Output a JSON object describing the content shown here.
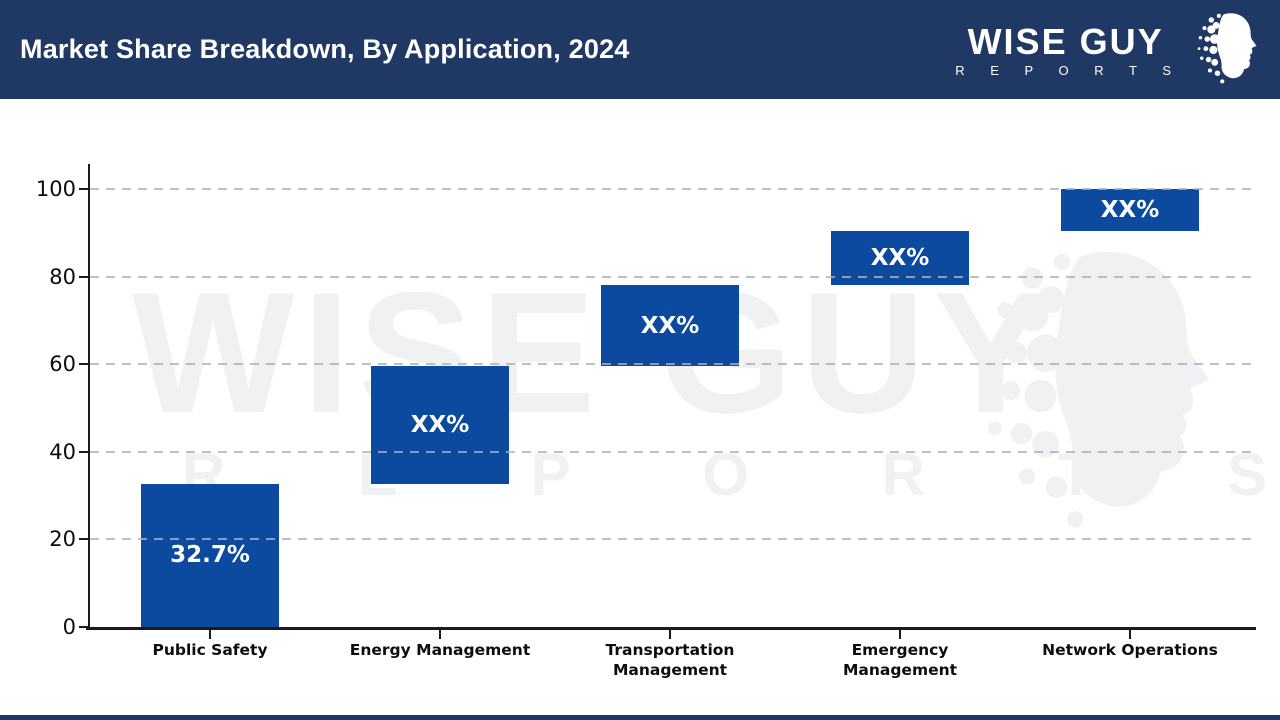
{
  "header": {
    "title": "Market Share Breakdown, By Application, 2024",
    "bg_color": "#1f3864",
    "logo": {
      "line1": "WISE GUY",
      "line2": "R E P O R T S"
    }
  },
  "watermark": {
    "line1": "WISE GUY",
    "line2": "R E P O R T S"
  },
  "footer": {
    "bar_color": "#1f3864"
  },
  "chart_data": {
    "type": "bar",
    "variant": "waterfall",
    "title": "Market Share Breakdown, By Application, 2024",
    "categories": [
      "Public Safety",
      "Energy Management",
      "Transportation Management",
      "Emergency Management",
      "Network Operations"
    ],
    "x_tick_labels": [
      "Public Safety",
      "Energy Management",
      "Transportation\nManagement",
      "Emergency\nManagement",
      "Network Operations"
    ],
    "segments": [
      {
        "category": "Public Safety",
        "start": 0,
        "end": 32.7,
        "label": "32.7%"
      },
      {
        "category": "Energy Management",
        "start": 32.7,
        "end": 59.5,
        "label": "XX%"
      },
      {
        "category": "Transportation Management",
        "start": 59.5,
        "end": 78.1,
        "label": "XX%"
      },
      {
        "category": "Emergency Management",
        "start": 78.1,
        "end": 90.5,
        "label": "XX%"
      },
      {
        "category": "Network Operations",
        "start": 90.5,
        "end": 100,
        "label": "XX%"
      }
    ],
    "unit": "%",
    "xlabel": "",
    "ylabel": "",
    "ylim": [
      0,
      105
    ],
    "yticks": [
      0,
      20,
      40,
      60,
      80,
      100
    ],
    "grid": {
      "axis": "y",
      "style": "dashed",
      "color": "#c9ccd1",
      "drawn_over_bars": true
    },
    "legend": "none",
    "bar_color": "#0b4a9e",
    "bar_label_color": "#ffffff",
    "axis_color": "#1a1a1a"
  }
}
